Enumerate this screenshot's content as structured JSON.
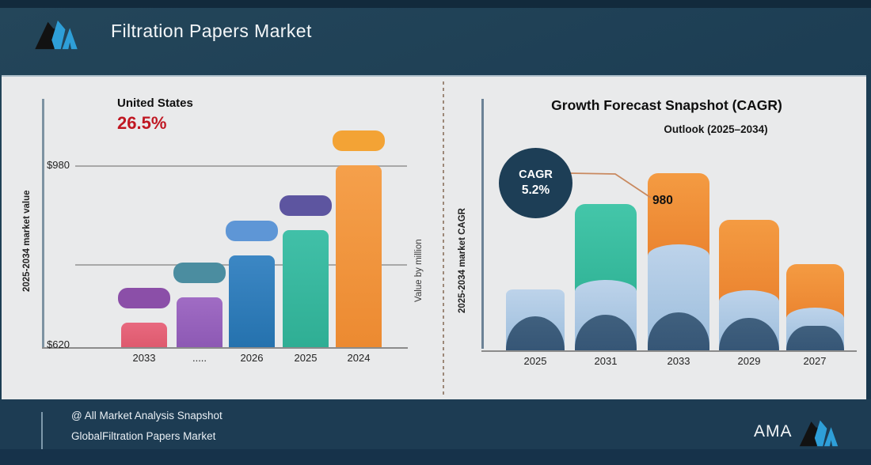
{
  "header": {
    "title": "Filtration Papers Market"
  },
  "colors": {
    "page_bg": "#1d3e54",
    "panel_bg": "#e9eaeb",
    "accent_red": "#c01722",
    "badge_bg": "#1d3e56",
    "connector": "#c9895f",
    "divider_dash": "#9c8878",
    "axis": "#7e93a2",
    "gridline": "#a8a8a8",
    "footer_bg": "#1d3c53"
  },
  "left_chart": {
    "region_label": "United States",
    "region_value": "26.5%",
    "y_axis_label": "2025-2034 market value",
    "right_axis_label": "Value by million",
    "y_ticks": [
      {
        "label": "$980"
      },
      {
        "label": "$620"
      }
    ]
  },
  "right_chart": {
    "title": "Growth Forecast Snapshot (CAGR)",
    "subtitle": "Outlook (2025–2034)",
    "badge_label": "CAGR",
    "badge_value": "5.2%",
    "annotation": "980",
    "y_axis_label": "2025-2034 market CAGR"
  },
  "footer": {
    "line1": "@ All Market Analysis Snapshot",
    "line2": "GlobalFiltration Papers Market",
    "brand": "AMA"
  },
  "chart_data": [
    {
      "type": "bar",
      "title": "United States",
      "highlight_value": "26.5%",
      "ylabel": "2025-2034 market value",
      "secondary_ylabel": "Value by million",
      "unit": "USD million",
      "values_estimated": true,
      "yticks": [
        620,
        980
      ],
      "ylim": [
        615,
        1010
      ],
      "grid": "horizontal",
      "categories": [
        "2033",
        ".....",
        "2026",
        "2025",
        "2024"
      ],
      "values": [
        665,
        715,
        800,
        850,
        980
      ],
      "bar_colors": [
        [
          "#e8697f",
          "#de5a6e"
        ],
        [
          "#a06cc4",
          "#8d59b4"
        ],
        [
          "#3c87c4",
          "#2572ae"
        ],
        [
          "#41c0a8",
          "#2fae94"
        ],
        [
          "#f5a04b",
          "#ec8a31"
        ]
      ],
      "cap_colors": [
        "#8b4fa8",
        "#4b8da0",
        "#5e96d6",
        "#5d55a0",
        "#f3a335"
      ]
    },
    {
      "type": "stacked-bar",
      "title": "Growth Forecast Snapshot (CAGR)",
      "subtitle": "Outlook (2025–2034)",
      "cagr": "5.2%",
      "ylabel": "2025-2034 market CAGR",
      "categories": [
        "2025",
        "2031",
        "2033",
        "2029",
        "2027"
      ],
      "labeled_point": {
        "category": "2033",
        "value": 980
      },
      "values_estimated": true,
      "segment_order_bottom_to_top": [
        "navy-dome",
        "light-blue",
        "colored-top"
      ],
      "bars": [
        {
          "total": 335,
          "mid": 335,
          "dome": 188,
          "top_color": null
        },
        {
          "total": 810,
          "mid": 363,
          "dome": 197,
          "top_color": "teal"
        },
        {
          "total": 980,
          "mid": 560,
          "dome": 210,
          "top_color": "orange"
        },
        {
          "total": 720,
          "mid": 306,
          "dome": 179,
          "top_color": "orange"
        },
        {
          "total": 475,
          "mid": 210,
          "dome": 136,
          "top_color": "orange"
        }
      ],
      "segment_colors": {
        "light_blue": [
          "#bdd3ea",
          "#9cbddc"
        ],
        "navy_dome": [
          "#40607e",
          "#365676"
        ],
        "teal": [
          "#44c6a9",
          "#32b598"
        ],
        "orange": [
          "#f49b42",
          "#eb8430"
        ]
      }
    }
  ]
}
